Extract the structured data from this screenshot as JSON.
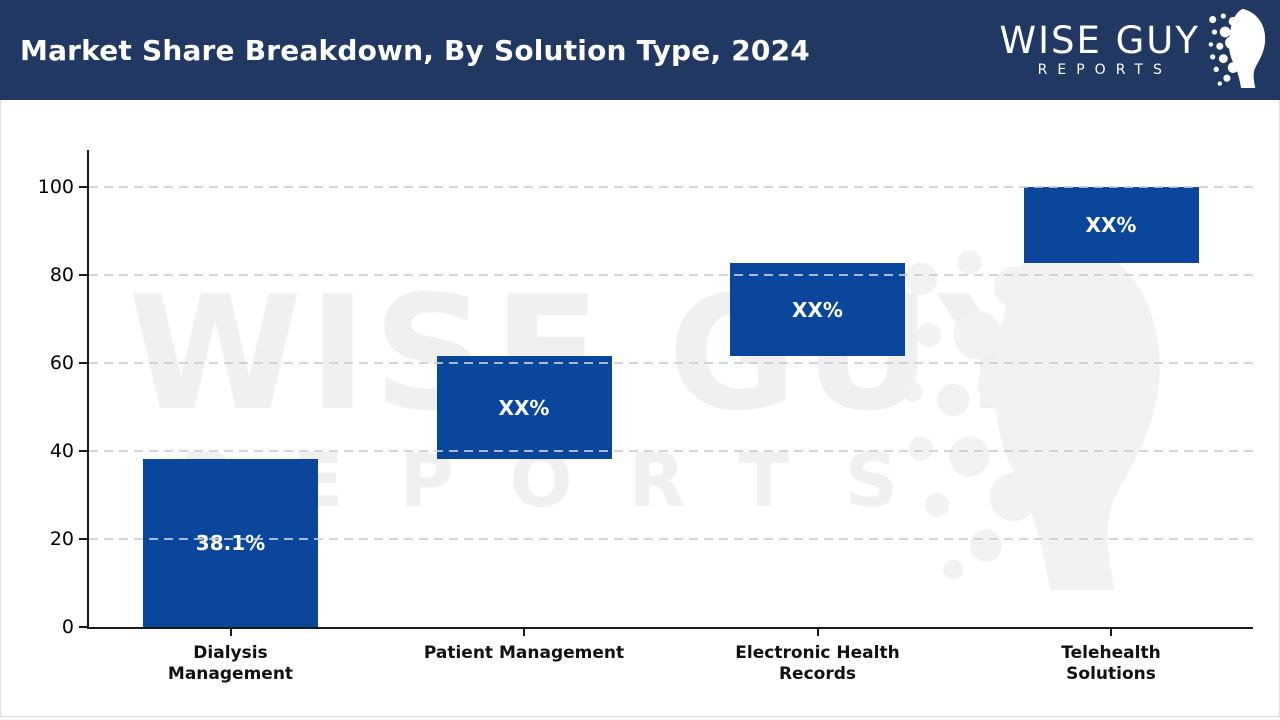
{
  "header": {
    "title": "Market Share Breakdown, By Solution Type, 2024",
    "bg_color": "#203862",
    "logo_line1": "WISE GUY",
    "logo_line2": "REPORTS"
  },
  "watermark": {
    "line1": "WISE GUY",
    "line2": "REPORTS"
  },
  "chart_data": {
    "type": "bar",
    "subtype": "waterfall",
    "title": "Market Share Breakdown, By Solution Type, 2024",
    "xlabel": "",
    "ylabel": "",
    "ylim": [
      0,
      100
    ],
    "yticks": [
      0,
      20,
      40,
      60,
      80,
      100
    ],
    "grid": "horizontal-dashed",
    "legend": "none",
    "bar_color": "#0a469b",
    "value_label_color": "#ffffff",
    "categories": [
      "Dialysis Management",
      "Patient Management",
      "Electronic Health Records",
      "Telehealth Solutions"
    ],
    "categories_lines": [
      [
        "Dialysis",
        "Management"
      ],
      [
        "Patient Management"
      ],
      [
        "Electronic Health",
        "Records"
      ],
      [
        "Telehealth",
        "Solutions"
      ]
    ],
    "segments": [
      {
        "category": "Dialysis Management",
        "start": 0,
        "end": 38.1,
        "value": 38.1,
        "value_label": "38.1%"
      },
      {
        "category": "Patient Management",
        "start": 38.1,
        "end": 61.6,
        "value": 23.5,
        "value_label": "XX%"
      },
      {
        "category": "Electronic Health Records",
        "start": 61.6,
        "end": 82.7,
        "value": 21.1,
        "value_label": "XX%"
      },
      {
        "category": "Telehealth Solutions",
        "start": 82.7,
        "end": 100,
        "value": 17.3,
        "value_label": "XX%"
      }
    ]
  }
}
